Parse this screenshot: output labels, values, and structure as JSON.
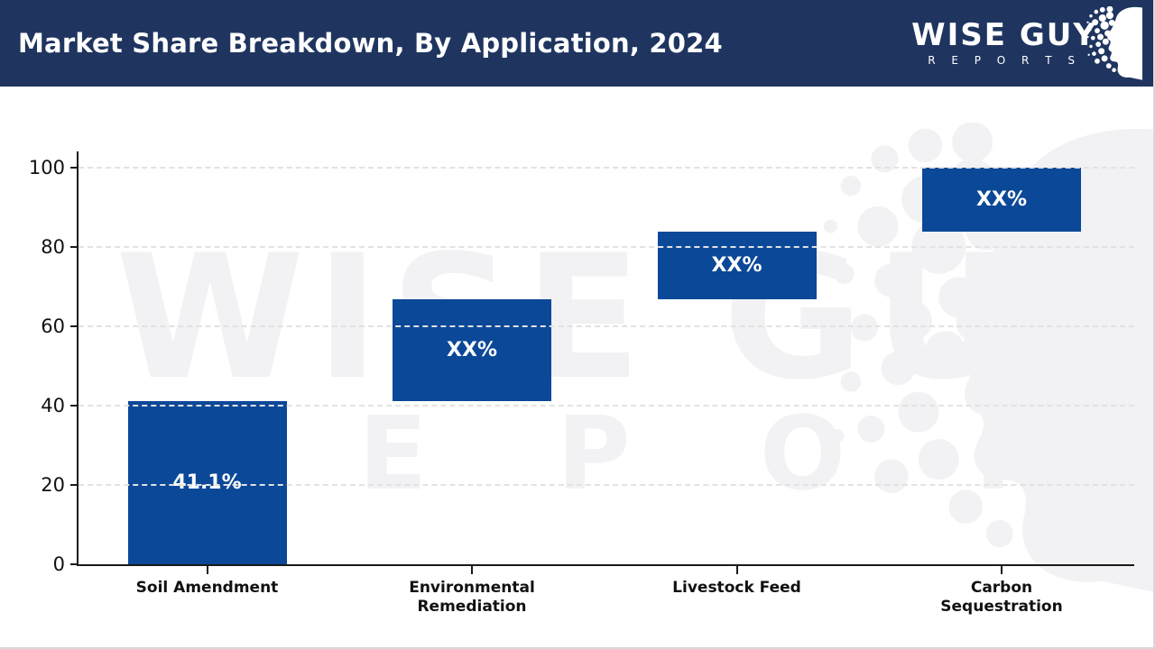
{
  "header": {
    "title": "Market Share Breakdown, By Application, 2024",
    "logo": {
      "brand_line1": "WISE GUY",
      "brand_line2": "R E P O R T S"
    }
  },
  "watermark": {
    "line1": "WISE GUY",
    "line2": "R E P O R T S"
  },
  "chart_data": {
    "type": "bar",
    "variant": "floating-waterfall-segments",
    "title": "Market Share Breakdown, By Application, 2024",
    "categories": [
      "Soil Amendment",
      "Environmental Remediation",
      "Livestock Feed",
      "Carbon Sequestration"
    ],
    "segments": [
      {
        "category": "Soil Amendment",
        "start": 0,
        "end": 41.1,
        "label": "41.1%"
      },
      {
        "category": "Environmental Remediation",
        "start": 41.1,
        "end": 66.8,
        "label": "XX%"
      },
      {
        "category": "Livestock Feed",
        "start": 66.8,
        "end": 83.9,
        "label": "XX%"
      },
      {
        "category": "Carbon Sequestration",
        "start": 83.9,
        "end": 100,
        "label": "XX%"
      }
    ],
    "xlabel": "",
    "ylabel": "",
    "ylim": [
      0,
      100
    ],
    "yticks": [
      0,
      20,
      40,
      60,
      80,
      100
    ],
    "grid": "horizontal-dashed",
    "legend": "none"
  },
  "colors": {
    "header_bg": "#1F3560",
    "bar": "#0B4898",
    "bar_label": "#FFFFFF",
    "grid_line": "#E2E2E2",
    "axis_line": "#1A1A1A",
    "tick_text": "#111111",
    "watermark": "#F2F2F4",
    "page_border": "#D9D9D9"
  }
}
